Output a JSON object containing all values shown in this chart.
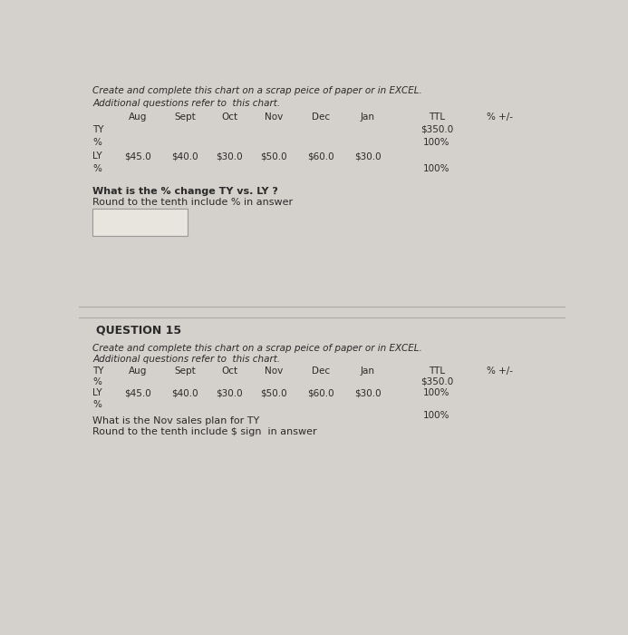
{
  "bg_color": "#d4d0cb",
  "white_color": "#e8e4de",
  "text_color": "#2a2a2a",
  "section1": {
    "title_line1": "Create and complete this chart on a scrap peice of paper or in EXCEL.",
    "title_line2": "Additional questions refer to  this chart.",
    "col_headers": [
      "Aug",
      "Sept",
      "Oct",
      "Nov",
      "Dec",
      "Jan",
      "TTL",
      "% +/-"
    ],
    "row_labels": [
      "TY",
      "%",
      "LY",
      "%"
    ],
    "TY_TTL": "$350.0",
    "pct_TTL_TY": "100%",
    "LY_values": [
      "$45.0",
      "$40.0",
      "$30.0",
      "$50.0",
      "$60.0",
      "$30.0"
    ],
    "pct_TTL_LY": "100%",
    "question_bold": "What is the % change TY vs. LY ?",
    "question_normal": "Round to the tenth include % in answer"
  },
  "section2": {
    "question_label": "QUESTION 15",
    "title_line1": "Create and complete this chart on a scrap peice of paper or in EXCEL.",
    "title_line2": "Additional questions refer to  this chart.",
    "col_headers": [
      "Aug",
      "Sept",
      "Oct",
      "Nov",
      "Dec",
      "Jan",
      "TTL",
      "% +/-"
    ],
    "row_labels": [
      "TY",
      "%",
      "LY",
      "%"
    ],
    "TY_TTL": "$350.0",
    "pct_TTL_TY": "100%",
    "LY_values": [
      "$45.0",
      "$40.0",
      "$30.0",
      "$50.0",
      "$60.0",
      "$30.0"
    ],
    "pct_TTL_LY": "100%",
    "question_bold": "What is the Nov sales plan for TY",
    "question_normal": "Round to the tenth include $ sign  in answer"
  },
  "font_size_title": 7.5,
  "font_size_table": 7.5,
  "font_size_question_label": 9.0,
  "font_size_question": 8.0
}
